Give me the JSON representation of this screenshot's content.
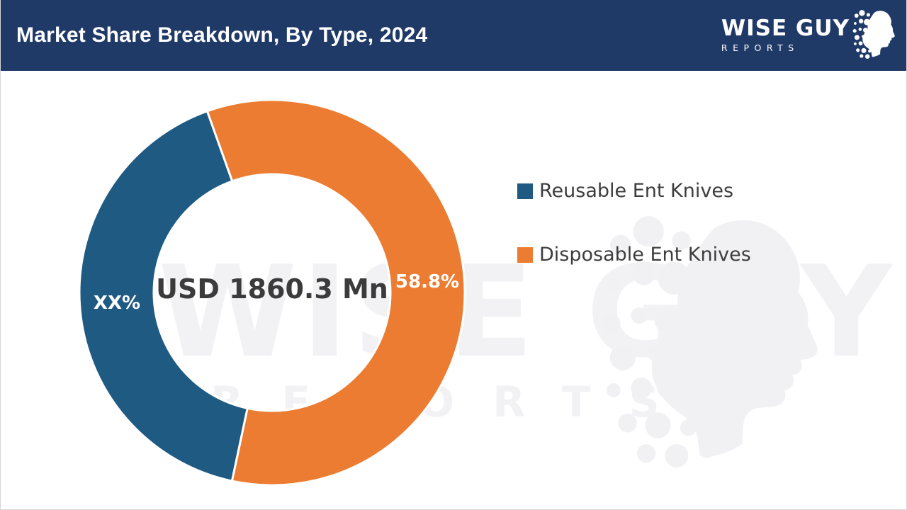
{
  "header": {
    "title": "Market Share Breakdown, By Type, 2024",
    "logo": {
      "name": "WISE GUY",
      "subtitle": "REPORTS"
    }
  },
  "watermark": {
    "line1": "WISE GUY",
    "line2": "REPORTS"
  },
  "chart_data": {
    "type": "pie",
    "title": "Market Share Breakdown, By Type, 2024",
    "hole": 0.61,
    "center_label": "USD 1860.3 Mn",
    "legend_position": "right",
    "start_angle_deg": 192,
    "segments": [
      {
        "label": "Reusable Ent Knives",
        "value_pct": 41.2,
        "value_label": "XX%",
        "color": "#1F5A82"
      },
      {
        "label": "Disposable Ent Knives",
        "value_pct": 58.8,
        "value_label": "58.8%",
        "color": "#EC7C31"
      }
    ]
  },
  "colors": {
    "header_bg": "#203A68",
    "center_text": "#3B3B3B",
    "legend_text": "#3D3D3D",
    "watermark": "#F2F2F4",
    "border": "#D5D5D8",
    "slice_divider": "#FFFFFF"
  }
}
